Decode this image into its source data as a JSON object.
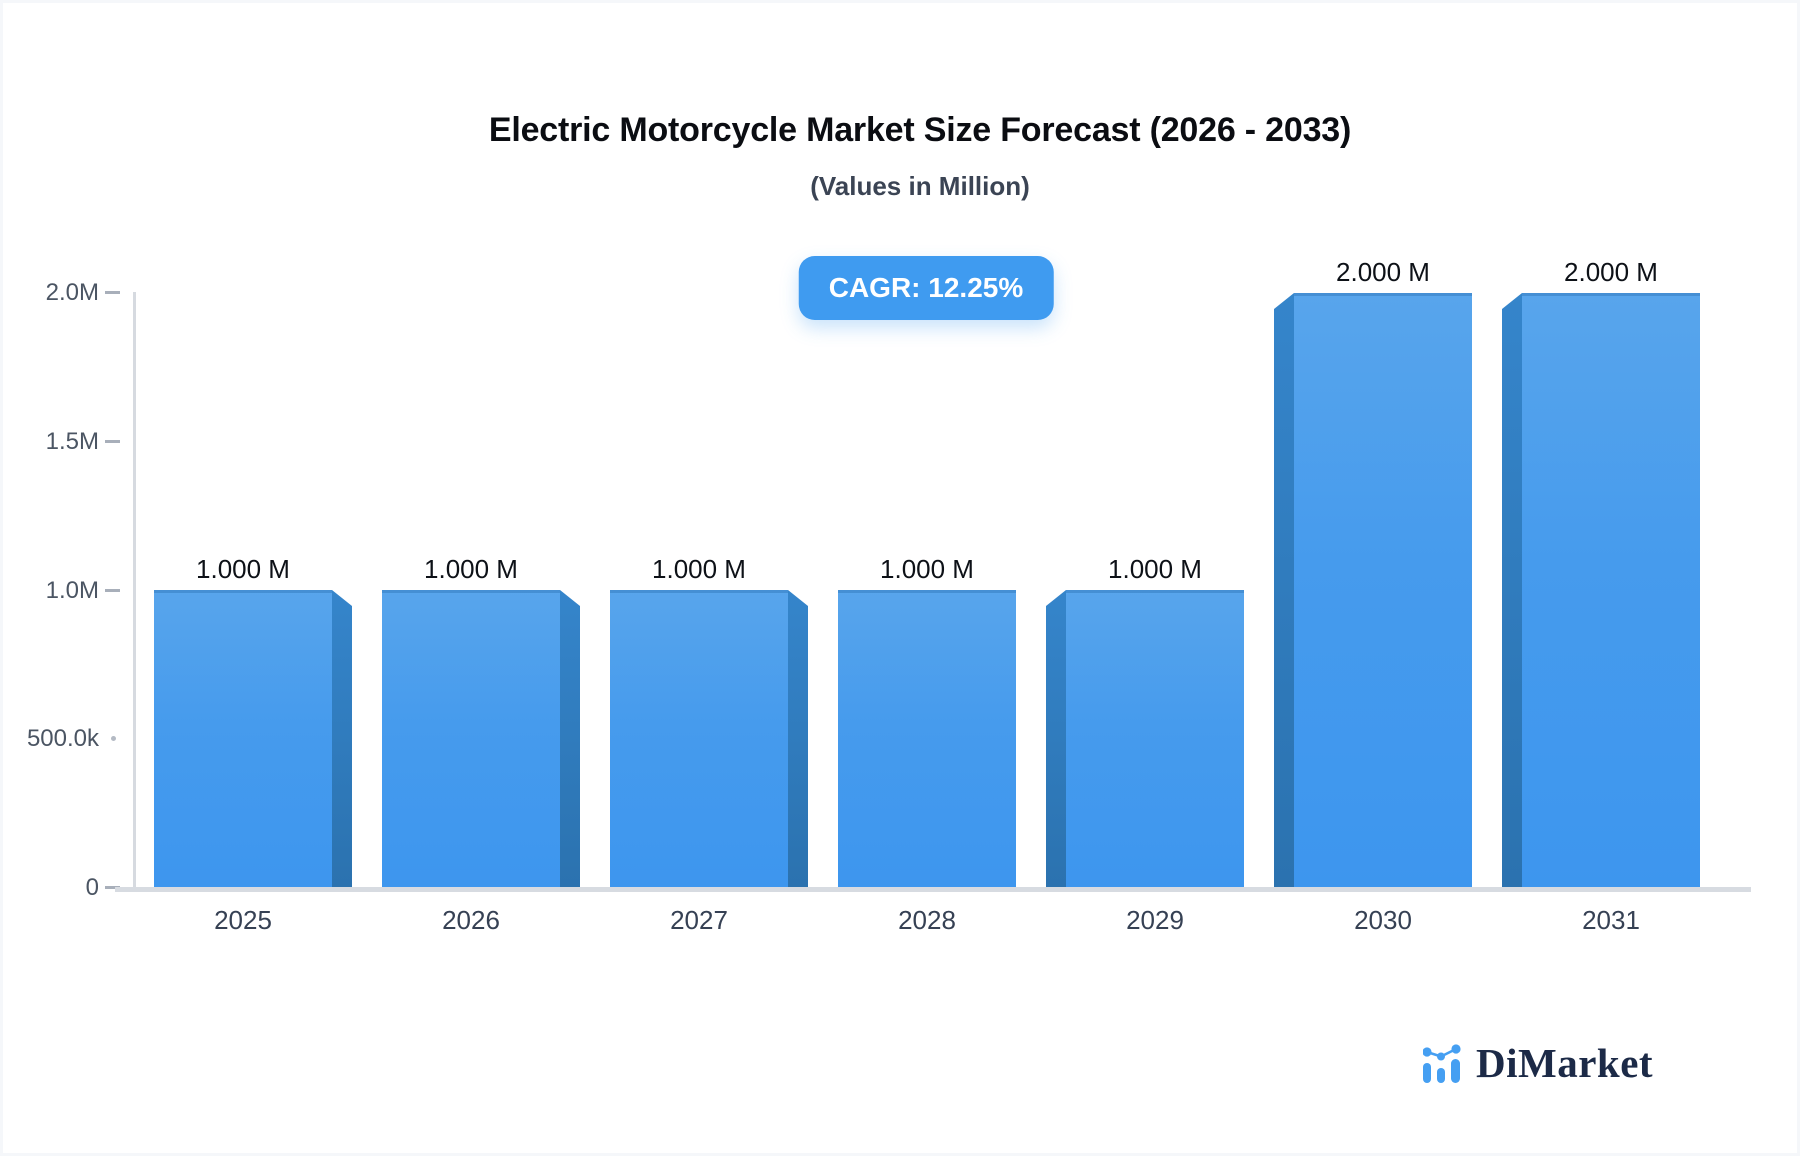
{
  "header": {
    "title": "Electric Motorcycle Market Size Forecast (2026 - 2033)",
    "subtitle": "(Values in Million)",
    "cagr_badge": "CAGR: 12.25%"
  },
  "chart_data": {
    "type": "bar",
    "title": "Electric Motorcycle Market Size Forecast (2026 - 2033)",
    "subtitle": "(Values in Million)",
    "cagr": "12.25%",
    "categories": [
      "2025",
      "2026",
      "2027",
      "2028",
      "2029",
      "2030",
      "2031"
    ],
    "values": [
      1000000,
      1000000,
      1000000,
      1000000,
      1000000,
      2000000,
      2000000
    ],
    "value_labels": [
      "1.000 M",
      "1.000 M",
      "1.000 M",
      "1.000 M",
      "1.000 M",
      "2.000 M",
      "2.000 M"
    ],
    "y_ticks": [
      {
        "label": "2.0M",
        "value": 2000000,
        "style": "dash"
      },
      {
        "label": "1.5M",
        "value": 1500000,
        "style": "dash"
      },
      {
        "label": "1.0M",
        "value": 1000000,
        "style": "dash"
      },
      {
        "label": "500.0k",
        "value": 500000,
        "style": "dot"
      },
      {
        "label": "0",
        "value": 0,
        "style": "dash"
      }
    ],
    "ylim": [
      0,
      2000000
    ],
    "xlabel": "",
    "ylabel": "",
    "grid": false,
    "legend": null,
    "colors": {
      "bar_top": "#58a5ec",
      "bar_bottom": "#3d96ee",
      "bar_side": "#2f7ab9",
      "badge_bg": "#3f9bf0",
      "axis": "#d7dbe1"
    }
  },
  "footer": {
    "brand": "DiMarket",
    "logo_icon": "mini-bar-line-chart-icon",
    "brand_color": "#1c2a47",
    "accent": "#459ff2"
  }
}
